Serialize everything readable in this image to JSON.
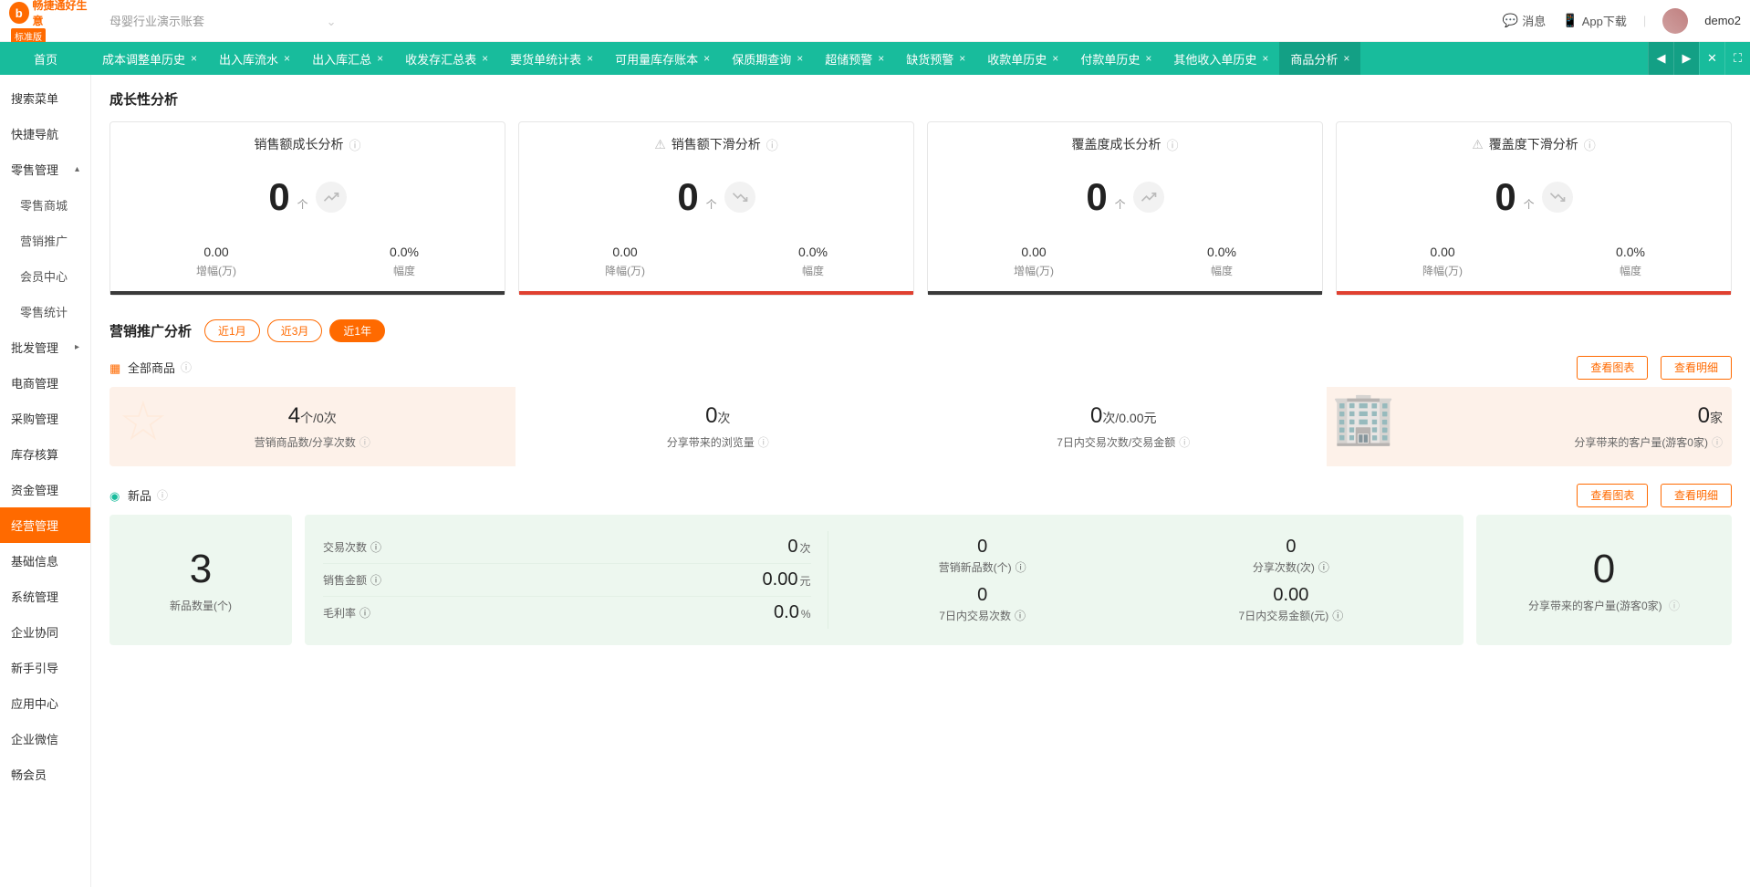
{
  "header": {
    "logo_text": "畅捷通好生意",
    "logo_badge": "标准版",
    "account": "母婴行业演示账套",
    "msg": "消息",
    "download": "App下载",
    "username": "demo2"
  },
  "tabs": {
    "home": "首页",
    "items": [
      {
        "label": "成本调整单历史"
      },
      {
        "label": "出入库流水"
      },
      {
        "label": "出入库汇总"
      },
      {
        "label": "收发存汇总表"
      },
      {
        "label": "要货单统计表"
      },
      {
        "label": "可用量库存账本"
      },
      {
        "label": "保质期查询"
      },
      {
        "label": "超储预警"
      },
      {
        "label": "缺货预警"
      },
      {
        "label": "收款单历史"
      },
      {
        "label": "付款单历史"
      },
      {
        "label": "其他收入单历史"
      },
      {
        "label": "商品分析"
      }
    ],
    "active_index": 12
  },
  "sidebar": {
    "search": "搜索菜单",
    "quick": "快捷导航",
    "items": [
      {
        "label": "零售管理",
        "expanded": true,
        "children": [
          "零售商城",
          "营销推广",
          "会员中心",
          "零售统计"
        ]
      },
      {
        "label": "批发管理",
        "caret": "▸"
      },
      {
        "label": "电商管理"
      },
      {
        "label": "采购管理"
      },
      {
        "label": "库存核算"
      },
      {
        "label": "资金管理"
      },
      {
        "label": "经营管理",
        "active": true
      },
      {
        "label": "基础信息"
      },
      {
        "label": "系统管理"
      },
      {
        "label": "企业协同"
      },
      {
        "label": "新手引导"
      },
      {
        "label": "应用中心"
      },
      {
        "label": "企业微信"
      },
      {
        "label": "畅会员"
      }
    ]
  },
  "growth": {
    "title": "成长性分析",
    "cards": [
      {
        "title": "销售额成长分析",
        "big": "0",
        "unit": "个",
        "trend": "up",
        "m1v": "0.00",
        "m1l": "增幅(万)",
        "m2v": "0.0%",
        "m2l": "幅度",
        "bar": "dark",
        "warn": false
      },
      {
        "title": "销售额下滑分析",
        "big": "0",
        "unit": "个",
        "trend": "down",
        "m1v": "0.00",
        "m1l": "降幅(万)",
        "m2v": "0.0%",
        "m2l": "幅度",
        "bar": "red",
        "warn": true
      },
      {
        "title": "覆盖度成长分析",
        "big": "0",
        "unit": "个",
        "trend": "up",
        "m1v": "0.00",
        "m1l": "增幅(万)",
        "m2v": "0.0%",
        "m2l": "幅度",
        "bar": "dark",
        "warn": false
      },
      {
        "title": "覆盖度下滑分析",
        "big": "0",
        "unit": "个",
        "trend": "down",
        "m1v": "0.00",
        "m1l": "降幅(万)",
        "m2v": "0.0%",
        "m2l": "幅度",
        "bar": "red",
        "warn": true
      }
    ]
  },
  "marketing": {
    "title": "营销推广分析",
    "periods": [
      "近1月",
      "近3月",
      "近1年"
    ],
    "active_period": 2,
    "all_goods": {
      "title": "全部商品",
      "btn_chart": "查看图表",
      "btn_detail": "查看明细",
      "cells": [
        {
          "big": "4",
          "big_suffix": "个/0次",
          "label": "营销商品数/分享次数",
          "highlight": "l"
        },
        {
          "big": "0",
          "big_suffix": "次",
          "label": "分享带来的浏览量"
        },
        {
          "big": "0",
          "big_suffix": "次/0.00元",
          "label": "7日内交易次数/交易金额"
        },
        {
          "big": "0",
          "big_suffix": "家",
          "label": "分享带来的客户量(游客0家)",
          "highlight": "r"
        }
      ]
    },
    "new_goods": {
      "title": "新品",
      "btn_chart": "查看图表",
      "btn_detail": "查看明细",
      "left": {
        "num": "3",
        "label": "新品数量(个)"
      },
      "mid_left": [
        {
          "label": "交易次数",
          "val": "0",
          "unit": "次"
        },
        {
          "label": "销售金额",
          "val": "0.00",
          "unit": "元"
        },
        {
          "label": "毛利率",
          "val": "0.0",
          "unit": "%"
        }
      ],
      "mid_right_cols": [
        [
          {
            "v": "0",
            "l": "营销新品数(个)"
          },
          {
            "v": "0",
            "l": "7日内交易次数"
          }
        ],
        [
          {
            "v": "0",
            "l": "分享次数(次)"
          },
          {
            "v": "0.00",
            "l": "7日内交易金额(元)"
          }
        ]
      ],
      "right": {
        "num": "0",
        "label": "分享带来的客户量(游客0家)"
      }
    }
  }
}
